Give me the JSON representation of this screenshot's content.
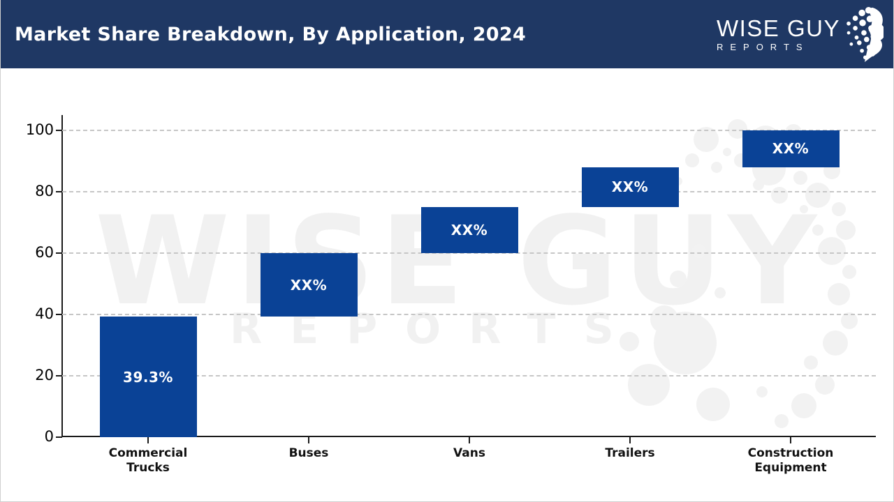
{
  "header": {
    "title": "Market Share Breakdown, By Application, 2024",
    "logo": {
      "line1": "WISE GUY",
      "line2": "REPORTS"
    }
  },
  "watermark": {
    "line1": "WISE GUY",
    "line2": "REPORTS"
  },
  "colors": {
    "header_bg": "#1f3864",
    "bar": "#0a4296",
    "grid": "#c6c6c6",
    "axis": "#1a1a1a",
    "watermark": "#f1f1f1"
  },
  "chart_data": {
    "type": "bar",
    "subtype": "waterfall",
    "title": "Market Share Breakdown, By Application, 2024",
    "xlabel": "",
    "ylabel": "",
    "ylim": [
      0,
      100
    ],
    "yticks": [
      0,
      20,
      40,
      60,
      80,
      100
    ],
    "grid": "horizontal-dashed",
    "legend": "none",
    "categories": [
      "Commercial Trucks",
      "Buses",
      "Vans",
      "Trailers",
      "Construction Equipment"
    ],
    "segments": [
      {
        "category": "Commercial Trucks",
        "start": 0,
        "end": 39.3,
        "value": 39.3,
        "label": "39.3%"
      },
      {
        "category": "Buses",
        "start": 39.3,
        "end": 60,
        "value": 20.7,
        "label": "XX%"
      },
      {
        "category": "Vans",
        "start": 60,
        "end": 75,
        "value": 15,
        "label": "XX%"
      },
      {
        "category": "Trailers",
        "start": 75,
        "end": 88,
        "value": 13,
        "label": "XX%"
      },
      {
        "category": "Construction Equipment",
        "start": 88,
        "end": 100,
        "value": 12,
        "label": "XX%"
      }
    ]
  }
}
